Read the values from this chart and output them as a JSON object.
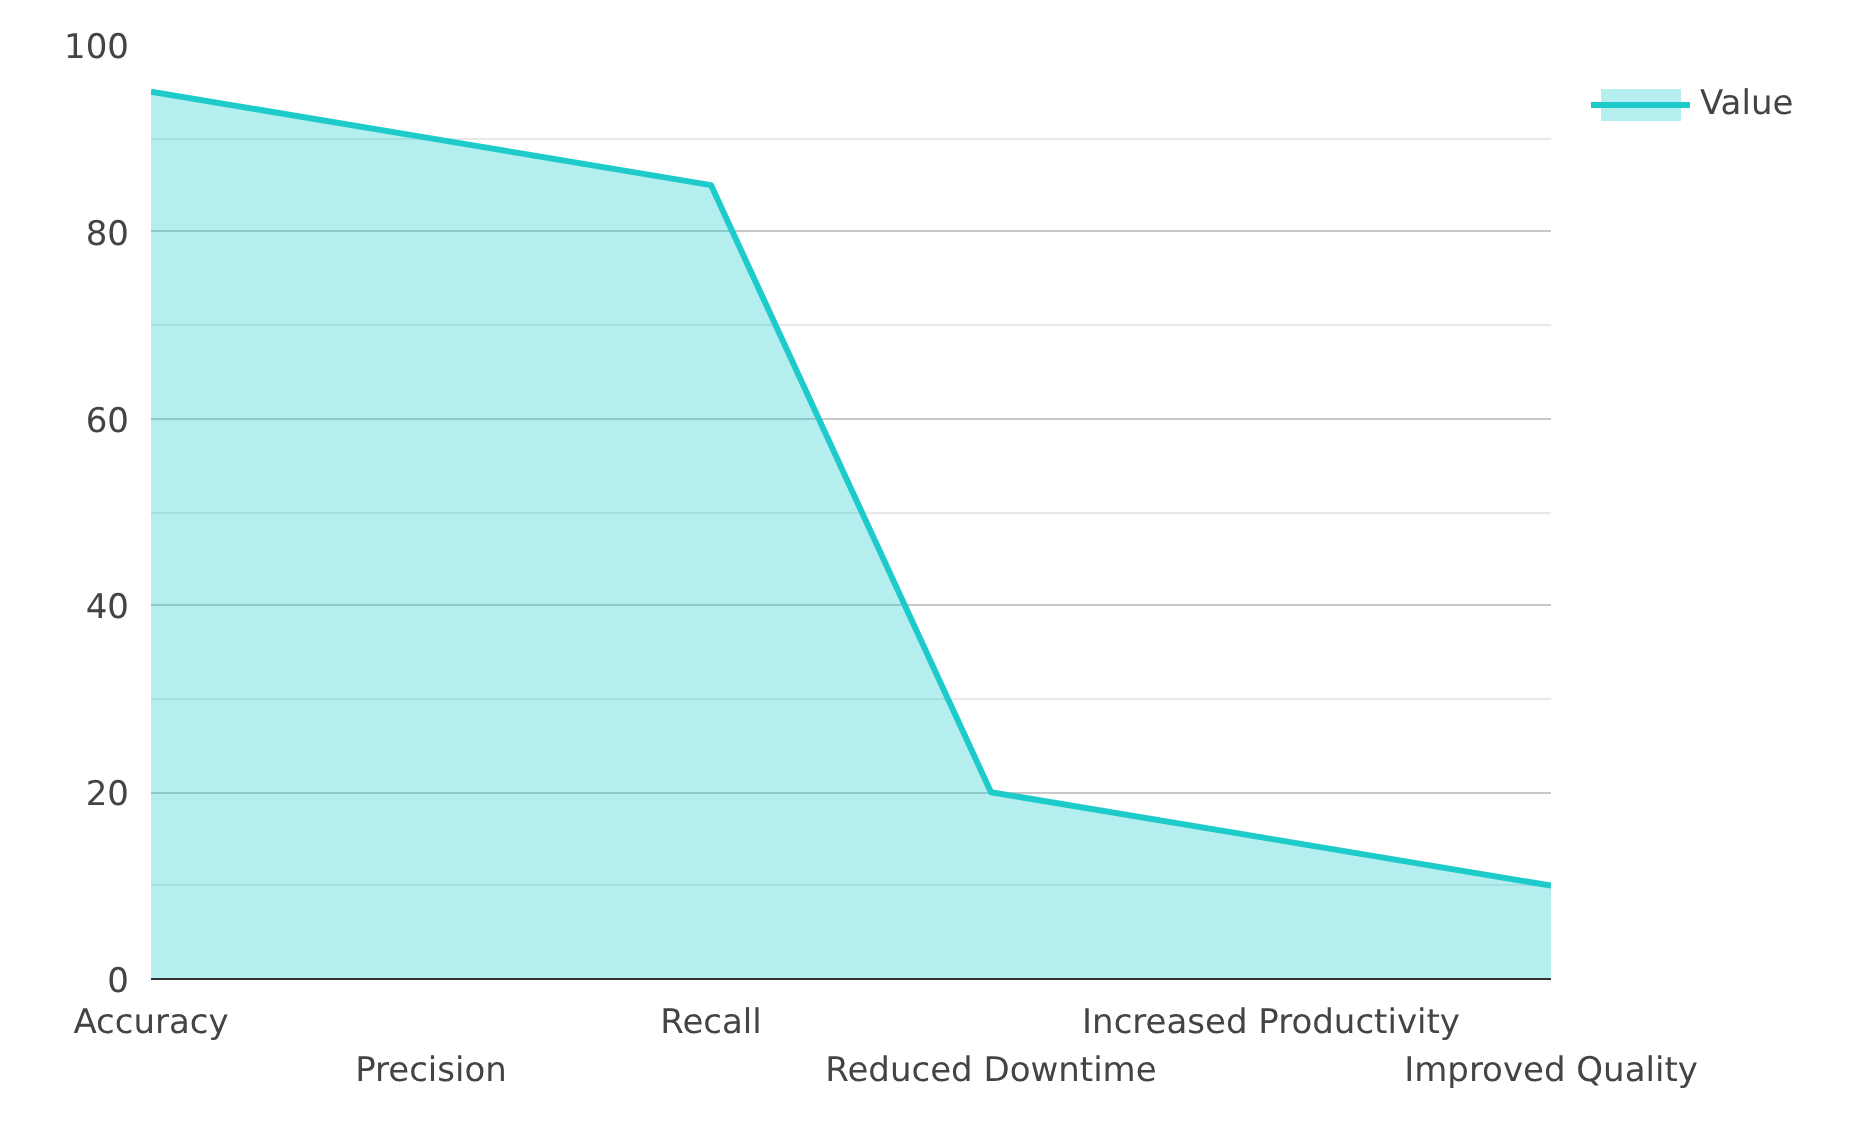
{
  "chart_data": {
    "type": "area",
    "categories": [
      "Accuracy",
      "Precision",
      "Recall",
      "Reduced Downtime",
      "Increased Productivity",
      "Improved Quality"
    ],
    "series": [
      {
        "name": "Value",
        "color": "#1ecbcb",
        "values": [
          95,
          90,
          85,
          20,
          15,
          10
        ]
      }
    ],
    "ylim": [
      0,
      100
    ],
    "yticks": [
      0,
      20,
      40,
      60,
      80,
      100
    ],
    "grid": "y",
    "legend": "top right"
  }
}
